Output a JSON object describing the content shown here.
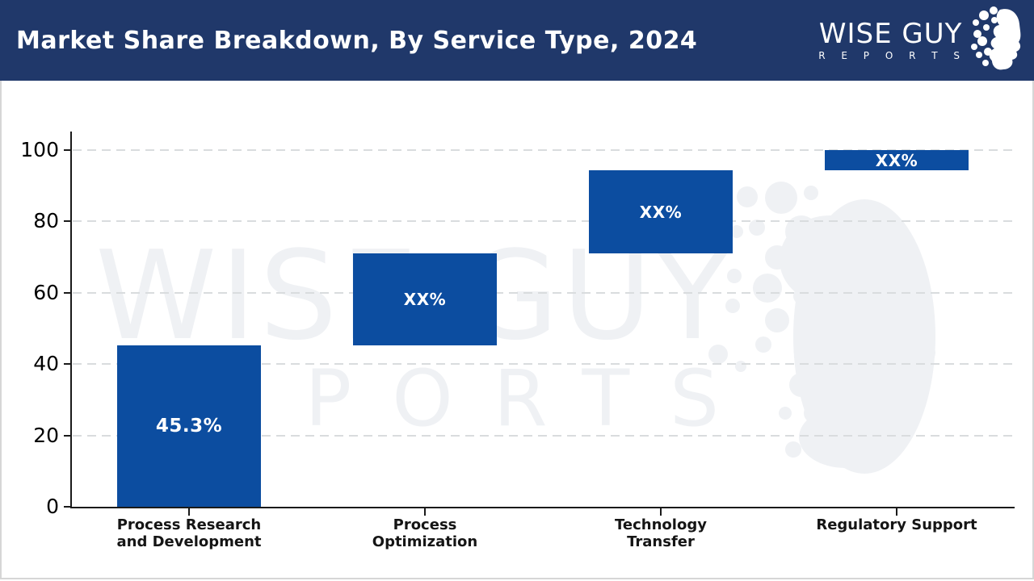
{
  "header": {
    "title": "Market Share Breakdown, By Service Type, 2024",
    "logo": {
      "line1": "WISE GUY",
      "line2": "R E P O R T S"
    }
  },
  "watermark": {
    "line1": "WISE GUY",
    "line2": "REPORTS"
  },
  "colors": {
    "header_bg": "#20386a",
    "bar": "#0c4da0",
    "grid": "#d9dcde",
    "axis": "#1a1a1a",
    "watermark": "#eff1f4",
    "title_text": "#ffffff",
    "bar_label_text": "#ffffff",
    "category_text": "#151515",
    "frame_border": "#d6d6d6"
  },
  "chart_data": {
    "type": "bar",
    "variant": "waterfall",
    "title": "Market Share Breakdown, By Service Type, 2024",
    "categories": [
      {
        "lines": [
          "Process Research",
          "and Development"
        ]
      },
      {
        "lines": [
          "Process",
          "Optimization"
        ]
      },
      {
        "lines": [
          "Technology",
          "Transfer"
        ]
      },
      {
        "lines": [
          "Regulatory Support"
        ]
      }
    ],
    "segments": [
      {
        "category": "Process Research and Development",
        "label": "45.3%",
        "start": 0,
        "end": 45.3
      },
      {
        "category": "Process Optimization",
        "label": "XX%",
        "start": 45.3,
        "end": 71.0
      },
      {
        "category": "Technology Transfer",
        "label": "XX%",
        "start": 71.0,
        "end": 94.3
      },
      {
        "category": "Regulatory Support",
        "label": "XX%",
        "start": 94.3,
        "end": 100.0
      }
    ],
    "yticks": [
      0,
      20,
      40,
      60,
      80,
      100
    ],
    "ylim": [
      0,
      105
    ],
    "xlabel": "",
    "ylabel": "",
    "grid": "horizontal-dashed",
    "legend": "none",
    "bar_color": "#0c4da0"
  }
}
